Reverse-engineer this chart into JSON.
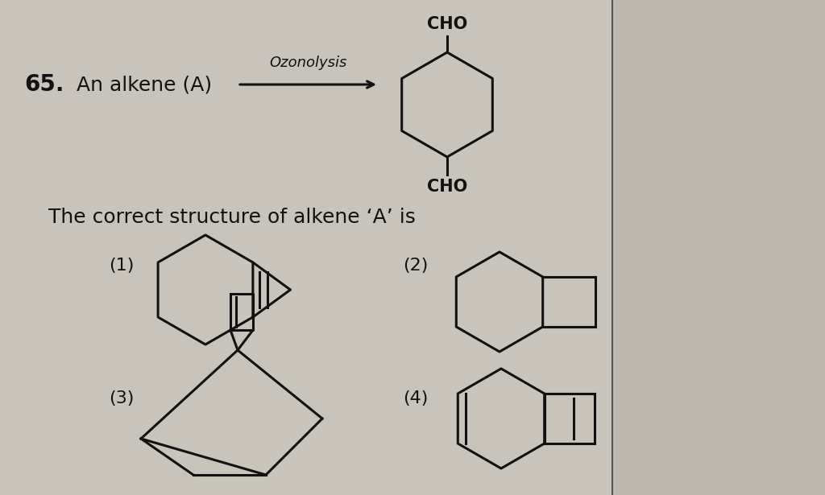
{
  "background_color": "#c8c4bc",
  "title_number": "65.",
  "question_text": "An alkene (A)",
  "arrow_label": "Ozonolysis",
  "product_label_top": "CHO",
  "product_label_bottom": "CHO",
  "sub_question_text": "The correct structure of alkene ‘A’ is",
  "option_labels": [
    "(1)",
    "(2)",
    "(3)",
    "(4)"
  ],
  "text_color": "#111111",
  "line_color": "#111111",
  "line_width": 2.2,
  "font_size_number": 20,
  "font_size_main": 18,
  "font_size_label": 16,
  "font_size_option": 16,
  "font_size_cho": 15
}
